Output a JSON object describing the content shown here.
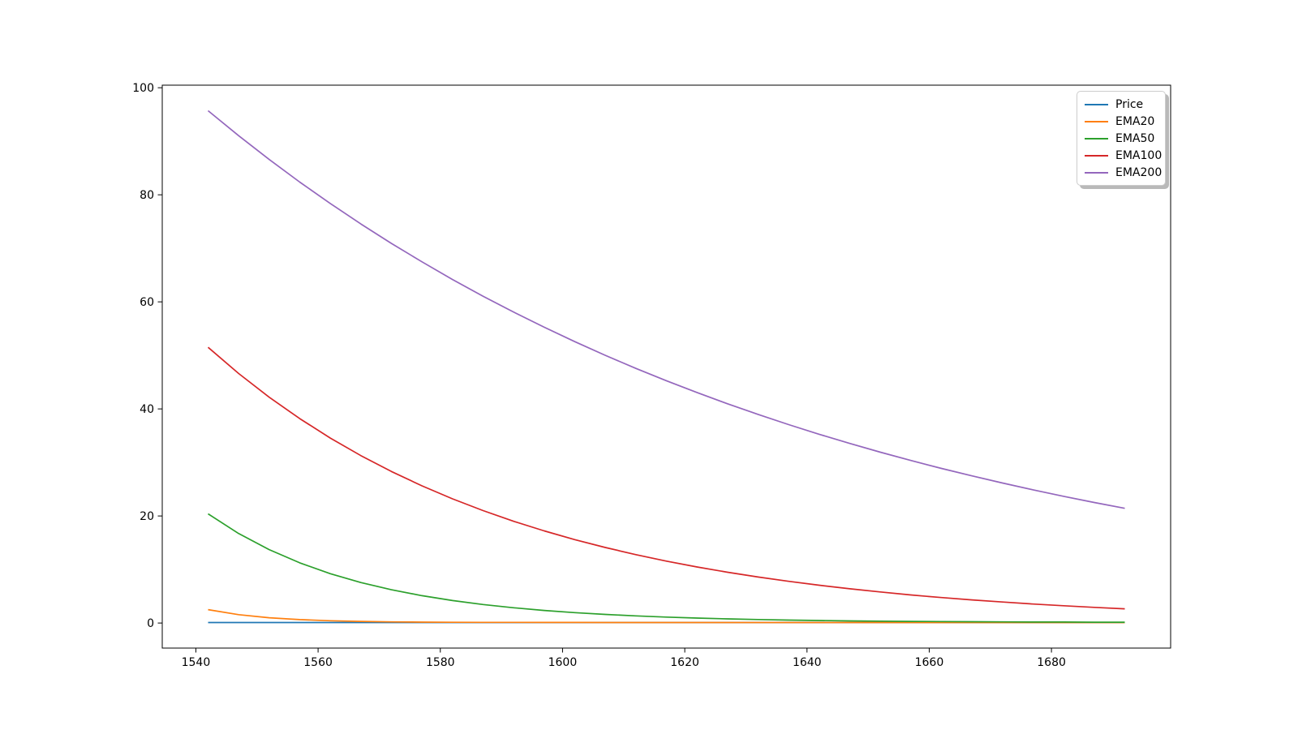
{
  "chart_data": {
    "type": "line",
    "title": "",
    "xlabel": "",
    "ylabel": "",
    "grid": false,
    "legend_position": "upper right",
    "xlim": [
      1534.5,
      1699.5
    ],
    "ylim": [
      -4.68,
      100.48
    ],
    "x_ticks": [
      1540,
      1560,
      1580,
      1600,
      1620,
      1640,
      1660,
      1680
    ],
    "y_ticks": [
      0,
      20,
      40,
      60,
      80,
      100
    ],
    "x": [
      1542,
      1547,
      1552,
      1557,
      1562,
      1567,
      1572,
      1577,
      1582,
      1587,
      1592,
      1597,
      1602,
      1607,
      1612,
      1617,
      1622,
      1627,
      1632,
      1637,
      1642,
      1647,
      1652,
      1657,
      1662,
      1667,
      1672,
      1677,
      1682,
      1687,
      1692
    ],
    "series": [
      {
        "name": "Price",
        "color": "#1f77b4",
        "values": [
          0.1,
          0.1,
          0.1,
          0.1,
          0.1,
          0.1,
          0.1,
          0.1,
          0.1,
          0.1,
          0.1,
          0.1,
          0.1,
          0.1,
          0.1,
          0.1,
          0.1,
          0.1,
          0.1,
          0.1,
          0.1,
          0.1,
          0.1,
          0.1,
          0.1,
          0.1,
          0.1,
          0.1,
          0.1,
          0.1,
          0.1
        ]
      },
      {
        "name": "EMA20",
        "color": "#ff7f0e",
        "values": [
          2.5,
          1.56,
          0.98,
          0.64,
          0.42,
          0.3,
          0.22,
          0.17,
          0.14,
          0.13,
          0.12,
          0.11,
          0.11,
          0.1,
          0.1,
          0.1,
          0.1,
          0.1,
          0.1,
          0.1,
          0.1,
          0.1,
          0.1,
          0.1,
          0.1,
          0.1,
          0.1,
          0.1,
          0.1,
          0.1,
          0.1
        ]
      },
      {
        "name": "EMA50",
        "color": "#2ca02c",
        "values": [
          20.4,
          16.72,
          13.71,
          11.24,
          9.22,
          7.57,
          6.21,
          5.11,
          4.2,
          3.46,
          2.85,
          2.35,
          1.94,
          1.61,
          1.33,
          1.11,
          0.93,
          0.78,
          0.65,
          0.55,
          0.47,
          0.4,
          0.35,
          0.3,
          0.27,
          0.24,
          0.21,
          0.19,
          0.18,
          0.16,
          0.15
        ]
      },
      {
        "name": "EMA100",
        "color": "#d62728",
        "values": [
          51.5,
          46.61,
          42.18,
          38.18,
          34.55,
          31.28,
          28.31,
          25.62,
          23.2,
          21.0,
          19.01,
          17.21,
          15.58,
          14.11,
          12.78,
          11.57,
          10.48,
          9.49,
          8.6,
          7.79,
          7.06,
          6.39,
          5.8,
          5.25,
          4.76,
          4.32,
          3.92,
          3.55,
          3.23,
          2.93,
          2.66
        ]
      },
      {
        "name": "EMA200",
        "color": "#9467bd",
        "values": [
          95.7,
          91.04,
          86.6,
          82.38,
          78.37,
          74.55,
          70.92,
          67.47,
          64.18,
          61.06,
          58.08,
          55.26,
          52.57,
          50.01,
          47.57,
          45.26,
          43.06,
          40.96,
          38.97,
          37.07,
          35.27,
          33.55,
          31.92,
          30.37,
          28.89,
          27.49,
          26.15,
          24.88,
          23.67,
          22.52,
          21.43
        ]
      }
    ]
  }
}
